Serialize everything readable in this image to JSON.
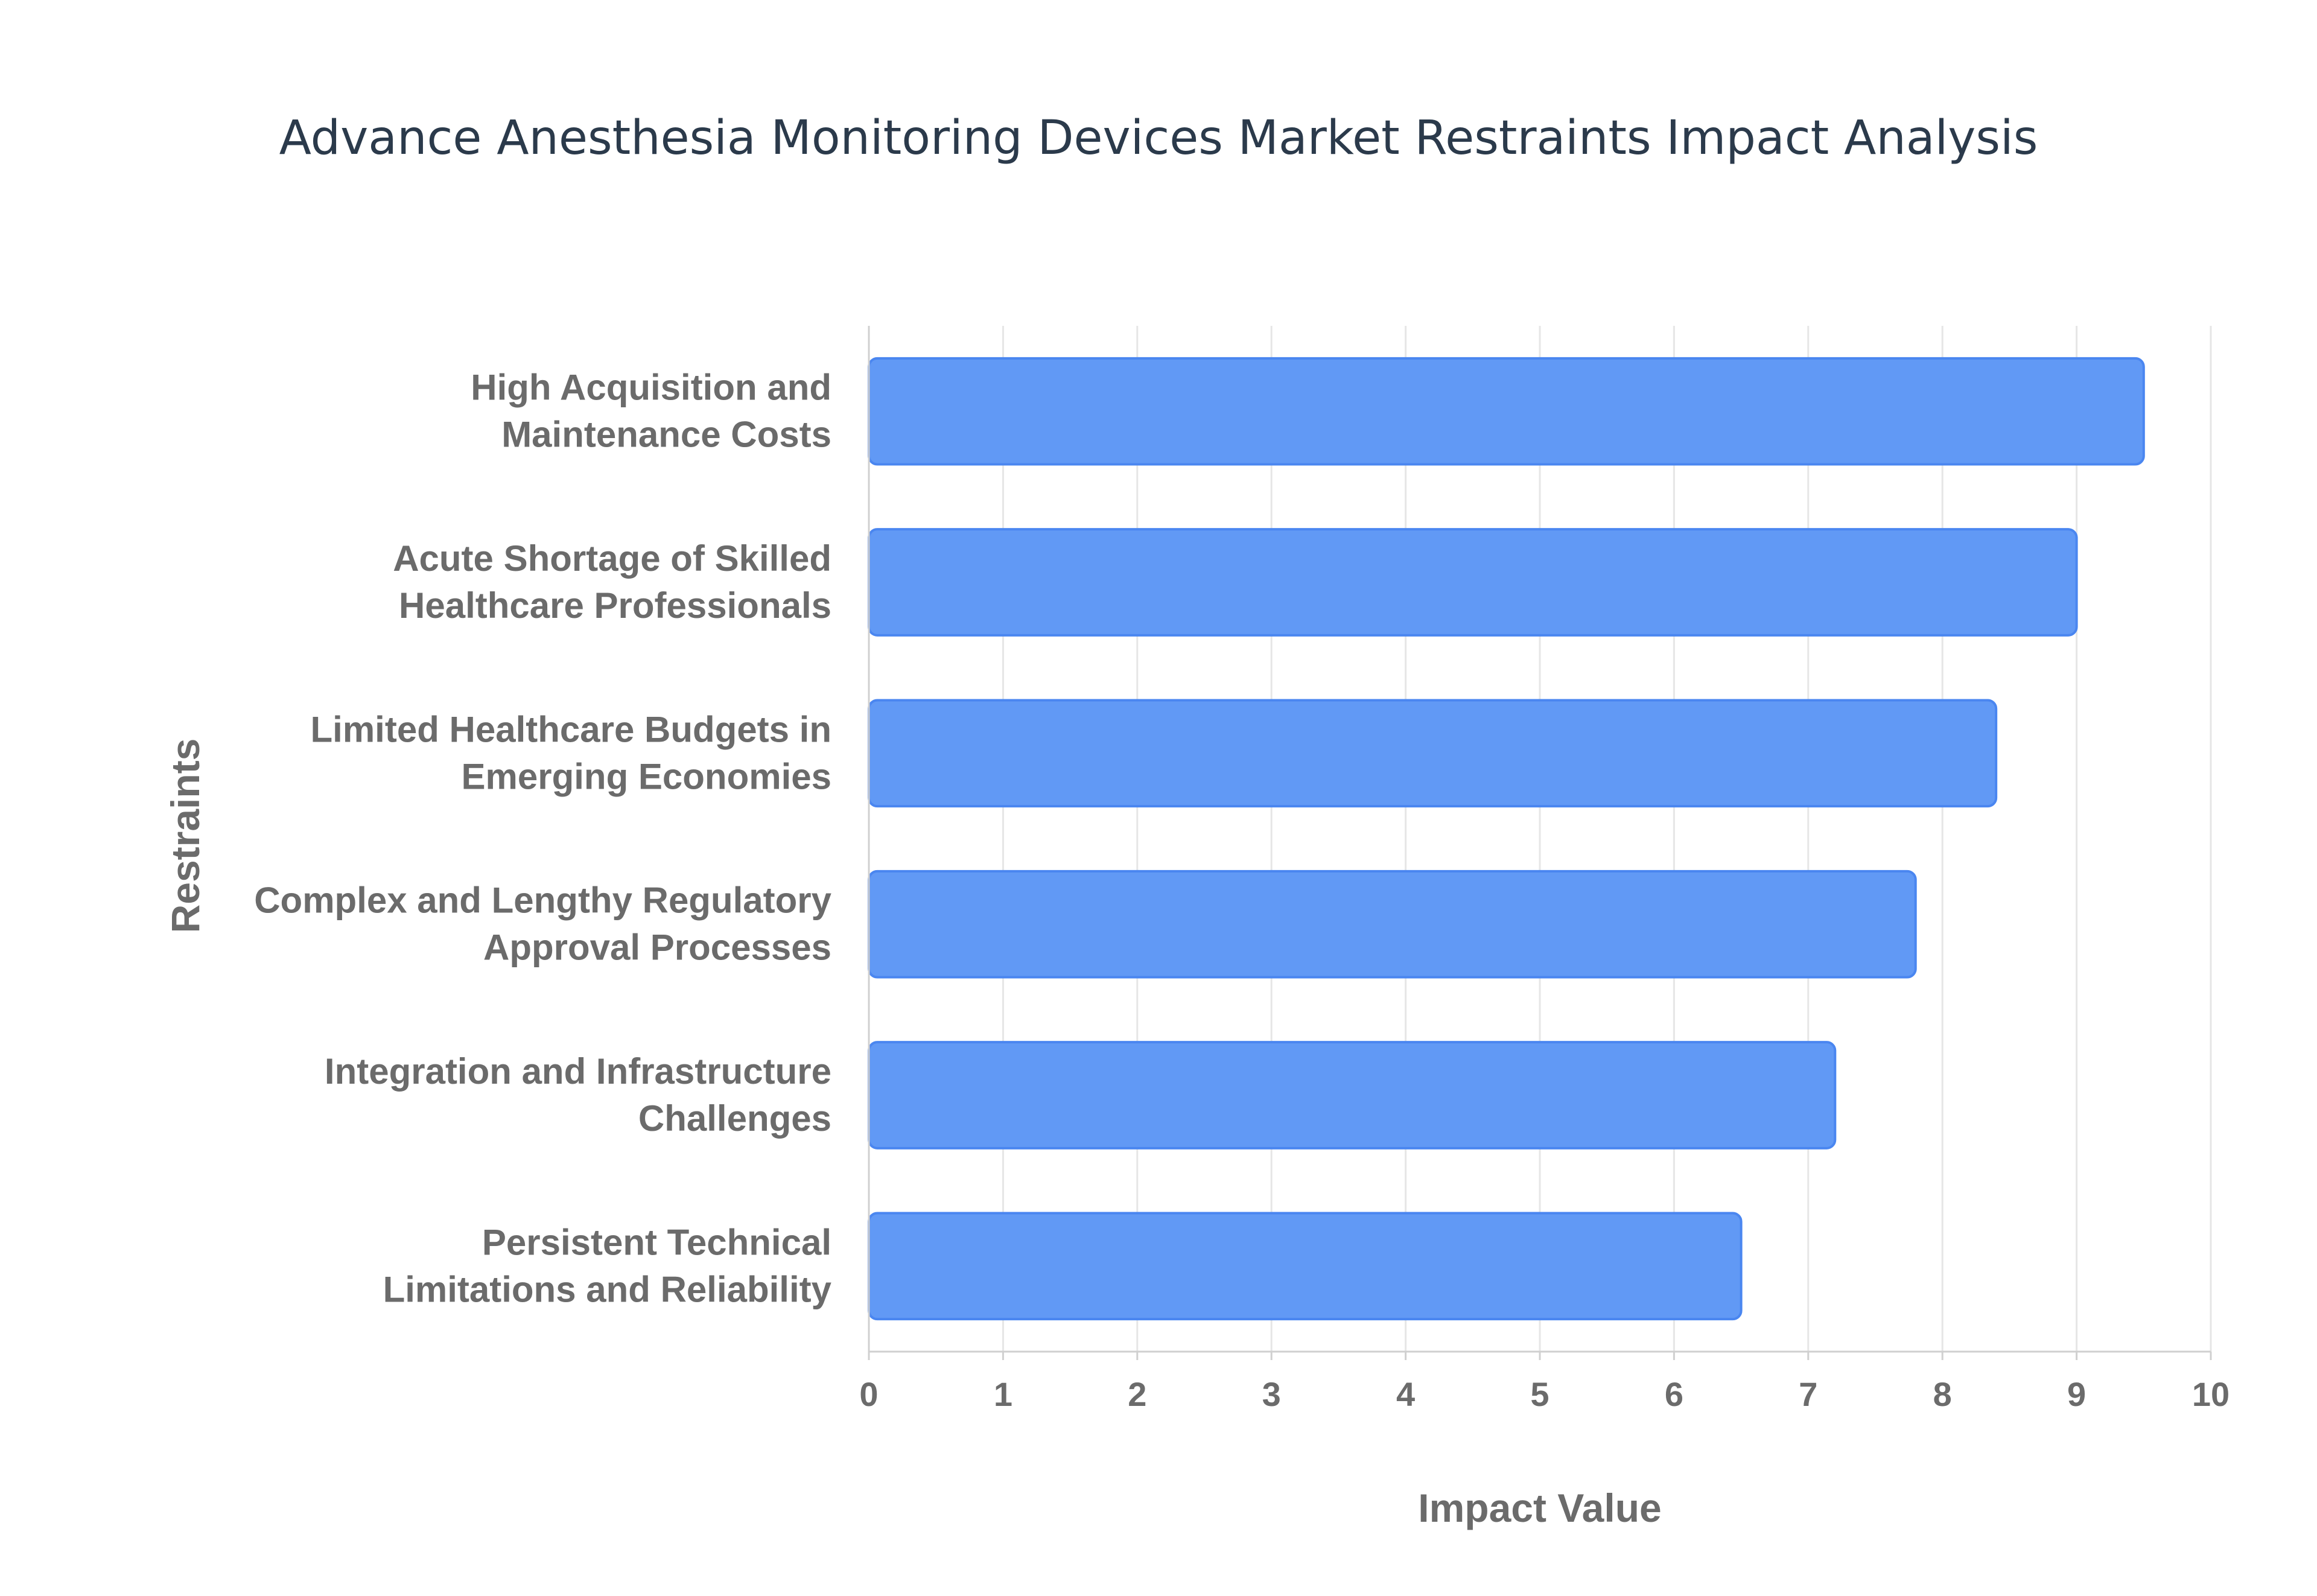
{
  "chart_data": {
    "type": "bar",
    "orientation": "horizontal",
    "title": "Advance Anesthesia Monitoring Devices Market Restraints Impact Analysis",
    "xlabel": "Impact Value",
    "ylabel": "Restraints",
    "categories": [
      [
        "High Acquisition and",
        "Maintenance Costs"
      ],
      [
        "Acute Shortage of Skilled",
        "Healthcare Professionals"
      ],
      [
        "Limited Healthcare Budgets in",
        "Emerging Economies"
      ],
      [
        "Complex and Lengthy Regulatory",
        "Approval Processes"
      ],
      [
        "Integration and Infrastructure",
        "Challenges"
      ],
      [
        "Persistent Technical",
        "Limitations and Reliability"
      ]
    ],
    "values": [
      9.5,
      9.0,
      8.4,
      7.8,
      7.2,
      6.5
    ],
    "xlim": [
      0,
      10
    ],
    "xticks": [
      "0",
      "1",
      "2",
      "3",
      "4",
      "5",
      "6",
      "7",
      "8",
      "9",
      "10"
    ],
    "grid": true,
    "legend": "none",
    "colors": {
      "bar_fill": "#6199f5",
      "bar_stroke": "#4a86f0",
      "grid": "#e6e6e6",
      "axis": "#d0d0d0",
      "title": "#2b3a4b",
      "label": "#6b6b6b"
    }
  }
}
